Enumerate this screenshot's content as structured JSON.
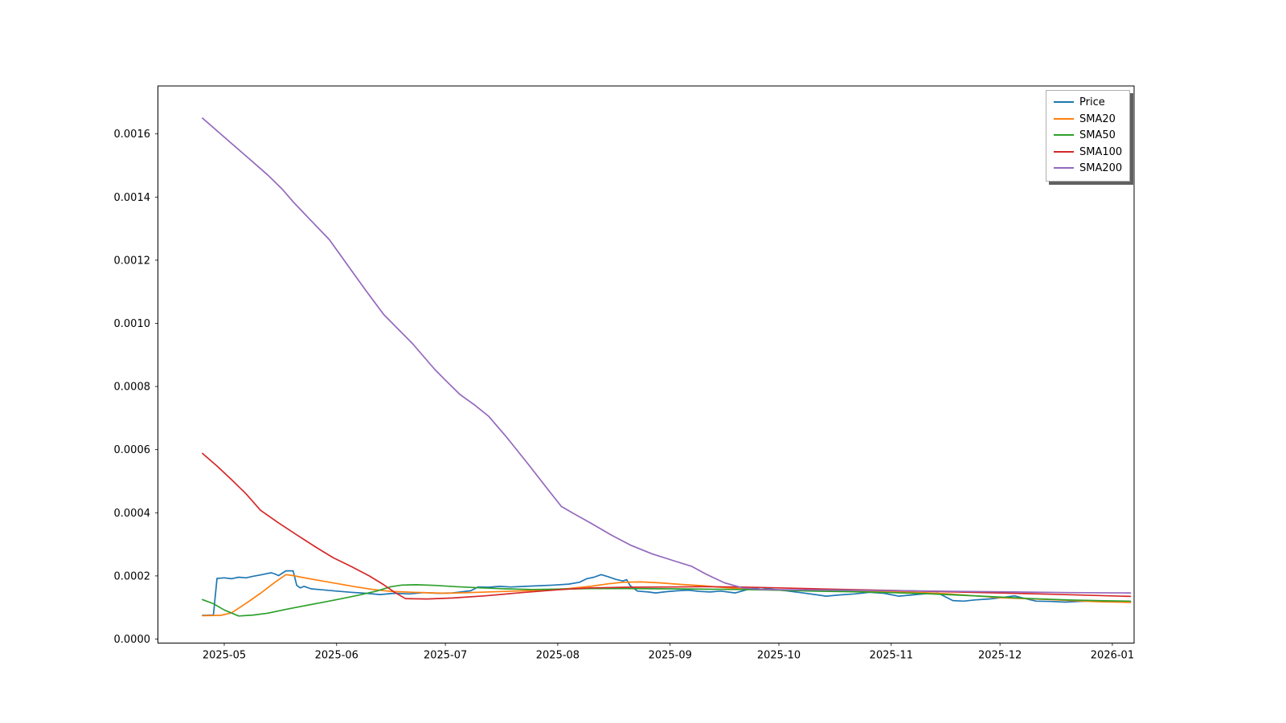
{
  "chart_data": {
    "type": "line",
    "title": "",
    "x_axis": {
      "kind": "date",
      "tick_labels": [
        "2025-05",
        "2025-06",
        "2025-07",
        "2025-08",
        "2025-09",
        "2025-10",
        "2025-11",
        "2025-12",
        "2026-01"
      ],
      "tick_dates": [
        "2025-05-01",
        "2025-06-01",
        "2025-07-01",
        "2025-08-01",
        "2025-09-01",
        "2025-10-01",
        "2025-11-01",
        "2025-12-01",
        "2026-01-01"
      ]
    },
    "y_axis": {
      "tick_labels": [
        "0.0000",
        "0.0002",
        "0.0004",
        "0.0006",
        "0.0008",
        "0.0010",
        "0.0012",
        "0.0014",
        "0.0016"
      ],
      "tick_values": [
        0.0,
        0.0002,
        0.0004,
        0.0006,
        0.0008,
        0.001,
        0.0012,
        0.0014,
        0.0016
      ],
      "shown_range": [
        0.0,
        0.0016
      ],
      "grid": false
    },
    "legend": {
      "position": "upper right",
      "entries": [
        "Price",
        "SMA20",
        "SMA50",
        "SMA100",
        "SMA200"
      ]
    },
    "series": [
      {
        "name": "Price",
        "color": "#1f77b4",
        "points": [
          [
            "2025-04-25",
            7.5e-05
          ],
          [
            "2025-04-28",
            7.6e-05
          ],
          [
            "2025-04-29",
            0.000192
          ],
          [
            "2025-05-01",
            0.000194
          ],
          [
            "2025-05-03",
            0.000191
          ],
          [
            "2025-05-05",
            0.000196
          ],
          [
            "2025-05-07",
            0.000194
          ],
          [
            "2025-05-09",
            0.000199
          ],
          [
            "2025-05-11",
            0.000203
          ],
          [
            "2025-05-13",
            0.000208
          ],
          [
            "2025-05-14",
            0.00021
          ],
          [
            "2025-05-15",
            0.000206
          ],
          [
            "2025-05-16",
            0.000201
          ],
          [
            "2025-05-18",
            0.000216
          ],
          [
            "2025-05-20",
            0.000216
          ],
          [
            "2025-05-21",
            0.00017
          ],
          [
            "2025-05-22",
            0.000162
          ],
          [
            "2025-05-23",
            0.000167
          ],
          [
            "2025-05-25",
            0.000159
          ],
          [
            "2025-05-28",
            0.000156
          ],
          [
            "2025-06-01",
            0.000152
          ],
          [
            "2025-06-05",
            0.000148
          ],
          [
            "2025-06-09",
            0.000145
          ],
          [
            "2025-06-13",
            0.000141
          ],
          [
            "2025-06-17",
            0.000145
          ],
          [
            "2025-06-21",
            0.000143
          ],
          [
            "2025-06-25",
            0.000147
          ],
          [
            "2025-06-29",
            0.000145
          ],
          [
            "2025-07-03",
            0.000146
          ],
          [
            "2025-07-08",
            0.000153
          ],
          [
            "2025-07-10",
            0.000165
          ],
          [
            "2025-07-13",
            0.000164
          ],
          [
            "2025-07-16",
            0.000167
          ],
          [
            "2025-07-19",
            0.000165
          ],
          [
            "2025-07-23",
            0.000167
          ],
          [
            "2025-07-27",
            0.000169
          ],
          [
            "2025-07-31",
            0.000171
          ],
          [
            "2025-08-04",
            0.000174
          ],
          [
            "2025-08-07",
            0.00018
          ],
          [
            "2025-08-09",
            0.000191
          ],
          [
            "2025-08-11",
            0.000196
          ],
          [
            "2025-08-13",
            0.000204
          ],
          [
            "2025-08-15",
            0.000197
          ],
          [
            "2025-08-17",
            0.000189
          ],
          [
            "2025-08-19",
            0.000184
          ],
          [
            "2025-08-20",
            0.000188
          ],
          [
            "2025-08-21",
            0.000169
          ],
          [
            "2025-08-23",
            0.000152
          ],
          [
            "2025-08-26",
            0.000149
          ],
          [
            "2025-08-28",
            0.000146
          ],
          [
            "2025-08-31",
            0.00015
          ],
          [
            "2025-09-03",
            0.000153
          ],
          [
            "2025-09-06",
            0.000155
          ],
          [
            "2025-09-09",
            0.000151
          ],
          [
            "2025-09-12",
            0.000149
          ],
          [
            "2025-09-15",
            0.000152
          ],
          [
            "2025-09-19",
            0.000146
          ],
          [
            "2025-09-23",
            0.000159
          ],
          [
            "2025-09-26",
            0.000163
          ],
          [
            "2025-09-29",
            0.000158
          ],
          [
            "2025-10-03",
            0.000153
          ],
          [
            "2025-10-07",
            0.000147
          ],
          [
            "2025-10-11",
            0.000141
          ],
          [
            "2025-10-14",
            0.000136
          ],
          [
            "2025-10-18",
            0.00014
          ],
          [
            "2025-10-22",
            0.000143
          ],
          [
            "2025-10-26",
            0.000148
          ],
          [
            "2025-10-30",
            0.000145
          ],
          [
            "2025-11-03",
            0.000136
          ],
          [
            "2025-11-07",
            0.00014
          ],
          [
            "2025-11-11",
            0.000144
          ],
          [
            "2025-11-14",
            0.000145
          ],
          [
            "2025-11-18",
            0.000122
          ],
          [
            "2025-11-21",
            0.00012
          ],
          [
            "2025-11-24",
            0.000124
          ],
          [
            "2025-11-28",
            0.000127
          ],
          [
            "2025-12-02",
            0.000132
          ],
          [
            "2025-12-05",
            0.000137
          ],
          [
            "2025-12-08",
            0.000128
          ],
          [
            "2025-12-11",
            0.00012
          ],
          [
            "2025-12-15",
            0.000119
          ],
          [
            "2025-12-19",
            0.000117
          ],
          [
            "2025-12-23",
            0.000119
          ],
          [
            "2025-12-27",
            0.000121
          ],
          [
            "2025-12-31",
            0.000119
          ],
          [
            "2026-01-03",
            0.000118
          ],
          [
            "2026-01-06",
            0.000118
          ]
        ]
      },
      {
        "name": "SMA20",
        "color": "#ff7f0e",
        "points": [
          [
            "2025-04-25",
            7.4e-05
          ],
          [
            "2025-04-30",
            7.5e-05
          ],
          [
            "2025-05-03",
            8.3e-05
          ],
          [
            "2025-05-07",
            0.000113
          ],
          [
            "2025-05-11",
            0.000145
          ],
          [
            "2025-05-15",
            0.00018
          ],
          [
            "2025-05-18",
            0.000204
          ],
          [
            "2025-05-20",
            0.000201
          ],
          [
            "2025-05-24",
            0.000192
          ],
          [
            "2025-05-28",
            0.000184
          ],
          [
            "2025-06-01",
            0.000176
          ],
          [
            "2025-06-06",
            0.000166
          ],
          [
            "2025-06-11",
            0.000157
          ],
          [
            "2025-06-16",
            0.000151
          ],
          [
            "2025-06-22",
            0.000148
          ],
          [
            "2025-07-01",
            0.000145
          ],
          [
            "2025-07-10",
            0.000148
          ],
          [
            "2025-07-20",
            0.000152
          ],
          [
            "2025-07-28",
            0.000155
          ],
          [
            "2025-08-04",
            0.00016
          ],
          [
            "2025-08-10",
            0.000167
          ],
          [
            "2025-08-15",
            0.000175
          ],
          [
            "2025-08-19",
            0.00018
          ],
          [
            "2025-08-24",
            0.000181
          ],
          [
            "2025-08-29",
            0.000178
          ],
          [
            "2025-09-04",
            0.000173
          ],
          [
            "2025-09-10",
            0.000169
          ],
          [
            "2025-09-16",
            0.000163
          ],
          [
            "2025-09-23",
            0.000158
          ],
          [
            "2025-10-01",
            0.000155
          ],
          [
            "2025-10-10",
            0.000153
          ],
          [
            "2025-10-20",
            0.000152
          ],
          [
            "2025-11-01",
            0.00015
          ],
          [
            "2025-11-10",
            0.000147
          ],
          [
            "2025-11-17",
            0.000143
          ],
          [
            "2025-11-24",
            0.000137
          ],
          [
            "2025-12-01",
            0.000131
          ],
          [
            "2025-12-08",
            0.000128
          ],
          [
            "2025-12-15",
            0.000125
          ],
          [
            "2025-12-22",
            0.000121
          ],
          [
            "2025-12-29",
            0.000118
          ],
          [
            "2026-01-06",
            0.000116
          ]
        ]
      },
      {
        "name": "SMA50",
        "color": "#2ca02c",
        "points": [
          [
            "2025-04-25",
            0.000125
          ],
          [
            "2025-04-28",
            0.000112
          ],
          [
            "2025-05-01",
            9.2e-05
          ],
          [
            "2025-05-05",
            7.3e-05
          ],
          [
            "2025-05-09",
            7.6e-05
          ],
          [
            "2025-05-13",
            8.2e-05
          ],
          [
            "2025-05-18",
            9.4e-05
          ],
          [
            "2025-05-23",
            0.000105
          ],
          [
            "2025-05-28",
            0.000116
          ],
          [
            "2025-06-02",
            0.000127
          ],
          [
            "2025-06-07",
            0.000139
          ],
          [
            "2025-06-12",
            0.000152
          ],
          [
            "2025-06-16",
            0.000166
          ],
          [
            "2025-06-19",
            0.000171
          ],
          [
            "2025-06-23",
            0.000172
          ],
          [
            "2025-06-28",
            0.00017
          ],
          [
            "2025-07-04",
            0.000166
          ],
          [
            "2025-07-11",
            0.000162
          ],
          [
            "2025-07-18",
            0.000159
          ],
          [
            "2025-07-25",
            0.000157
          ],
          [
            "2025-08-01",
            0.000158
          ],
          [
            "2025-08-10",
            0.00016
          ],
          [
            "2025-08-20",
            0.00016
          ],
          [
            "2025-09-01",
            0.000159
          ],
          [
            "2025-09-10",
            0.000158
          ],
          [
            "2025-09-20",
            0.000157
          ],
          [
            "2025-10-01",
            0.000155
          ],
          [
            "2025-10-10",
            0.000152
          ],
          [
            "2025-10-20",
            0.00015
          ],
          [
            "2025-11-01",
            0.000147
          ],
          [
            "2025-11-10",
            0.000144
          ],
          [
            "2025-11-20",
            0.000139
          ],
          [
            "2025-12-01",
            0.000133
          ],
          [
            "2025-12-10",
            0.000128
          ],
          [
            "2025-12-20",
            0.000124
          ],
          [
            "2025-12-30",
            0.000121
          ],
          [
            "2026-01-06",
            0.00012
          ]
        ]
      },
      {
        "name": "SMA100",
        "color": "#d62728",
        "points": [
          [
            "2025-04-25",
            0.000588
          ],
          [
            "2025-04-29",
            0.000548
          ],
          [
            "2025-05-03",
            0.000505
          ],
          [
            "2025-05-07",
            0.00046
          ],
          [
            "2025-05-11",
            0.000408
          ],
          [
            "2025-05-16",
            0.000368
          ],
          [
            "2025-05-21",
            0.00033
          ],
          [
            "2025-05-26",
            0.000293
          ],
          [
            "2025-05-31",
            0.000258
          ],
          [
            "2025-06-05",
            0.00023
          ],
          [
            "2025-06-10",
            0.0002
          ],
          [
            "2025-06-14",
            0.000172
          ],
          [
            "2025-06-17",
            0.000148
          ],
          [
            "2025-06-20",
            0.000128
          ],
          [
            "2025-06-26",
            0.000127
          ],
          [
            "2025-07-03",
            0.00013
          ],
          [
            "2025-07-12",
            0.000137
          ],
          [
            "2025-07-22",
            0.000147
          ],
          [
            "2025-08-01",
            0.000156
          ],
          [
            "2025-08-10",
            0.000162
          ],
          [
            "2025-08-20",
            0.000164
          ],
          [
            "2025-09-01",
            0.000165
          ],
          [
            "2025-09-10",
            0.000166
          ],
          [
            "2025-09-20",
            0.000165
          ],
          [
            "2025-10-01",
            0.000162
          ],
          [
            "2025-10-15",
            0.000158
          ],
          [
            "2025-11-01",
            0.000154
          ],
          [
            "2025-11-15",
            0.00015
          ],
          [
            "2025-12-01",
            0.000146
          ],
          [
            "2025-12-15",
            0.000142
          ],
          [
            "2026-01-06",
            0.000135
          ]
        ]
      },
      {
        "name": "SMA200",
        "color": "#9467bd",
        "points": [
          [
            "2025-04-25",
            0.00165
          ],
          [
            "2025-05-03",
            0.00157
          ],
          [
            "2025-05-08",
            0.00152
          ],
          [
            "2025-05-13",
            0.00147
          ],
          [
            "2025-05-17",
            0.001425
          ],
          [
            "2025-05-20",
            0.001385
          ],
          [
            "2025-05-25",
            0.001325
          ],
          [
            "2025-05-30",
            0.001265
          ],
          [
            "2025-06-04",
            0.001185
          ],
          [
            "2025-06-09",
            0.001105
          ],
          [
            "2025-06-14",
            0.001028
          ],
          [
            "2025-06-22",
            0.000935
          ],
          [
            "2025-06-28",
            0.000855
          ],
          [
            "2025-07-01",
            0.00082
          ],
          [
            "2025-07-05",
            0.000775
          ],
          [
            "2025-07-09",
            0.000742
          ],
          [
            "2025-07-13",
            0.000705
          ],
          [
            "2025-07-18",
            0.000638
          ],
          [
            "2025-07-24",
            0.000552
          ],
          [
            "2025-07-29",
            0.000478
          ],
          [
            "2025-08-02",
            0.00042
          ],
          [
            "2025-08-05",
            0.0004
          ],
          [
            "2025-08-10",
            0.000368
          ],
          [
            "2025-08-16",
            0.000328
          ],
          [
            "2025-08-21",
            0.000298
          ],
          [
            "2025-08-27",
            0.00027
          ],
          [
            "2025-09-02",
            0.000248
          ],
          [
            "2025-09-07",
            0.00023
          ],
          [
            "2025-09-11",
            0.000205
          ],
          [
            "2025-09-16",
            0.000178
          ],
          [
            "2025-09-21",
            0.000162
          ],
          [
            "2025-09-26",
            0.000157
          ],
          [
            "2025-10-06",
            0.000156
          ],
          [
            "2025-10-20",
            0.000155
          ],
          [
            "2025-11-05",
            0.000153
          ],
          [
            "2025-11-20",
            0.000151
          ],
          [
            "2025-12-05",
            0.000149
          ],
          [
            "2025-12-20",
            0.000147
          ],
          [
            "2026-01-06",
            0.000146
          ]
        ]
      }
    ]
  }
}
